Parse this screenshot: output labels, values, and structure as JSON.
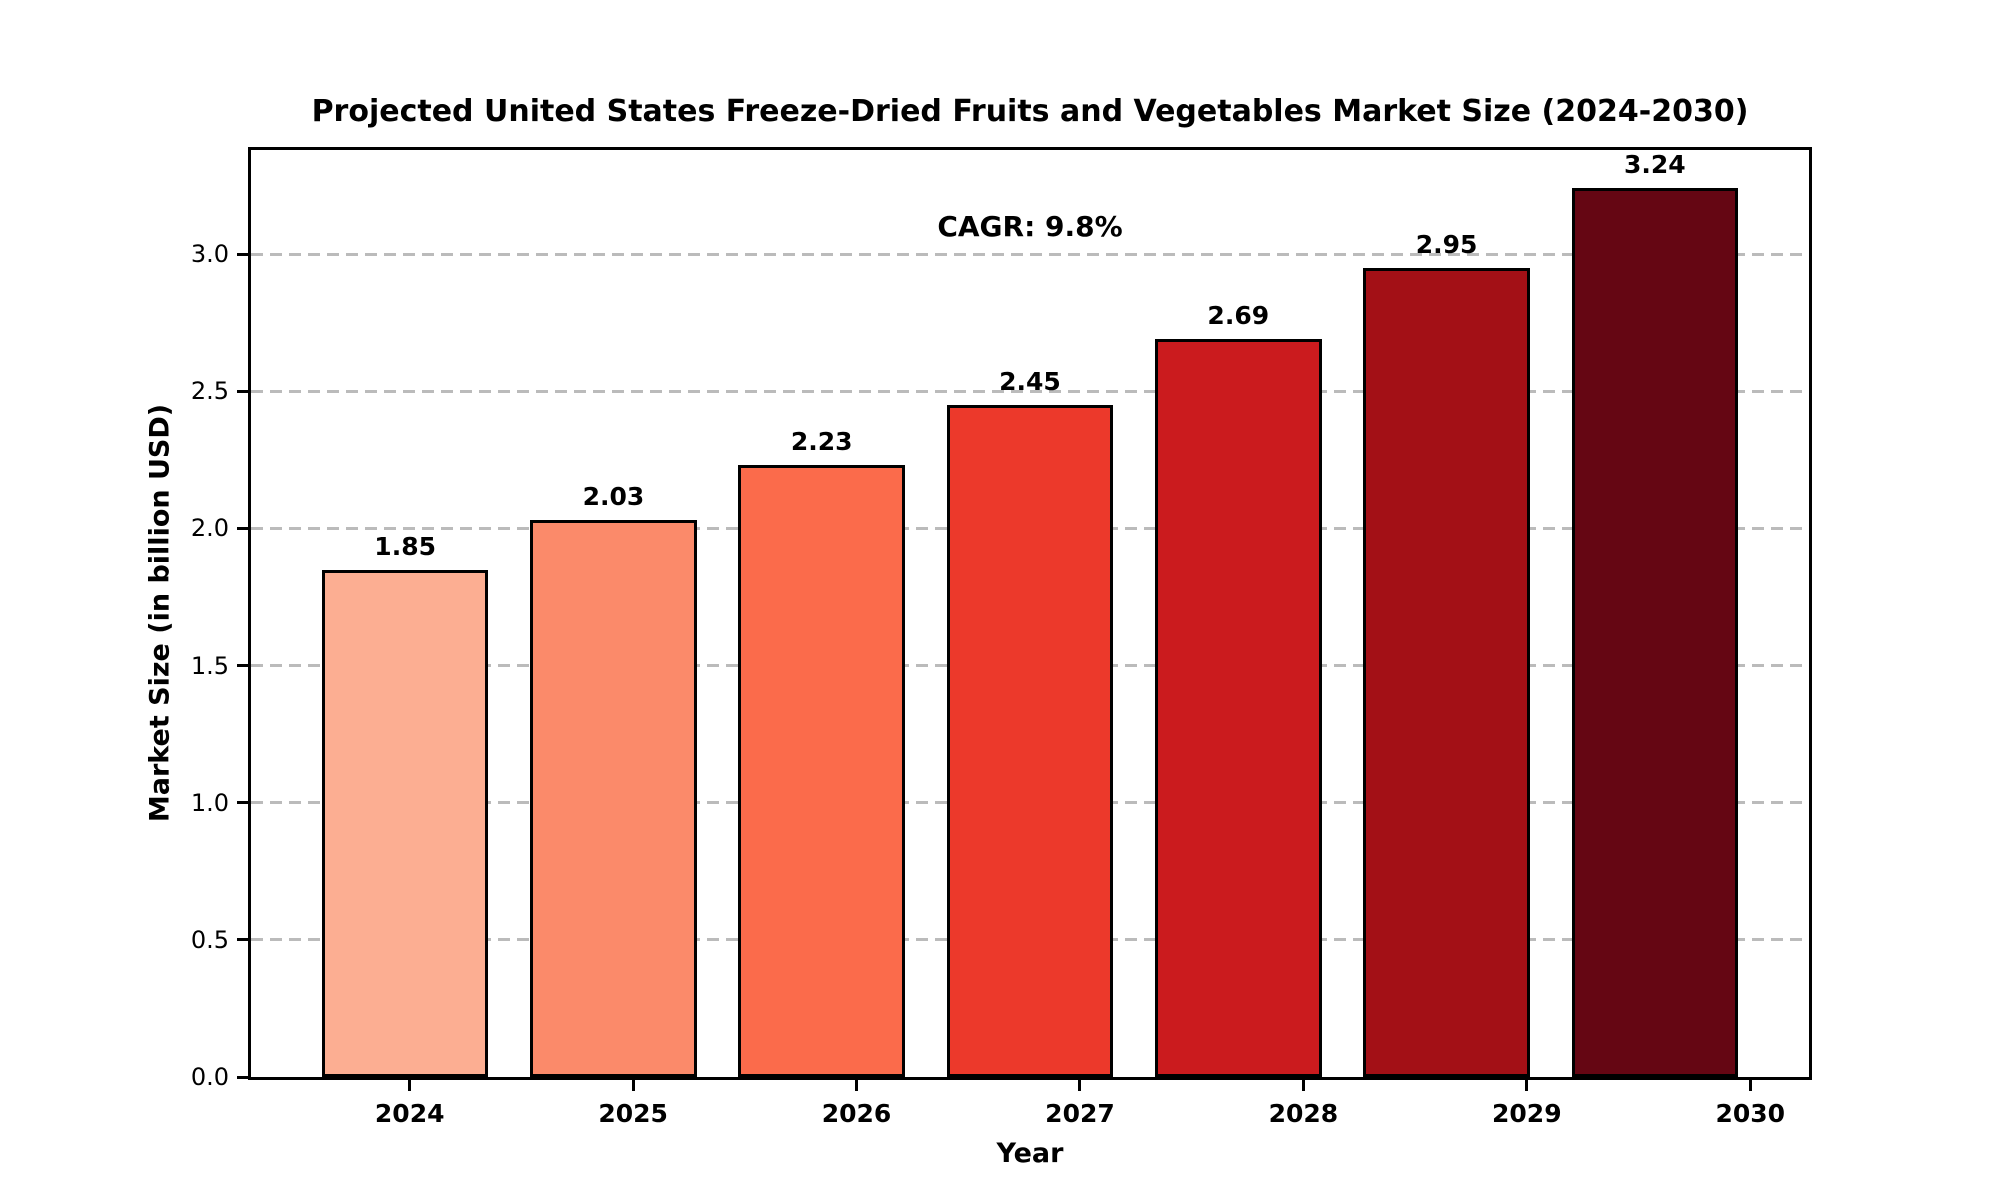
{
  "chart_data": {
    "type": "bar",
    "title": "Projected United States Freeze-Dried Fruits and Vegetables Market Size (2024-2030)",
    "xlabel": "Year",
    "ylabel": "Market Size (in billion USD)",
    "annotation": "CAGR: 9.8%",
    "categories": [
      "2024",
      "2025",
      "2026",
      "2027",
      "2028",
      "2029",
      "2030"
    ],
    "values": [
      1.85,
      2.03,
      2.23,
      2.45,
      2.69,
      2.95,
      3.24
    ],
    "value_labels": [
      "1.85",
      "2.03",
      "2.23",
      "2.45",
      "2.69",
      "2.95",
      "3.24"
    ],
    "bar_colors": [
      "#fcae92",
      "#fb8a6a",
      "#fb6b4b",
      "#ec392b",
      "#cb1b1e",
      "#a31016",
      "#650613"
    ],
    "bar_edge_color": "#000000",
    "ylim": [
      0,
      3.38
    ],
    "y_ticks": [
      0.0,
      0.5,
      1.0,
      1.5,
      2.0,
      2.5,
      3.0
    ],
    "y_tick_labels": [
      "0.0",
      "0.5",
      "1.0",
      "1.5",
      "2.0",
      "2.5",
      "3.0"
    ],
    "grid": {
      "axis": "y",
      "style": "dashed",
      "color": "#bbbbbb",
      "visible": true
    },
    "legend": "none"
  }
}
